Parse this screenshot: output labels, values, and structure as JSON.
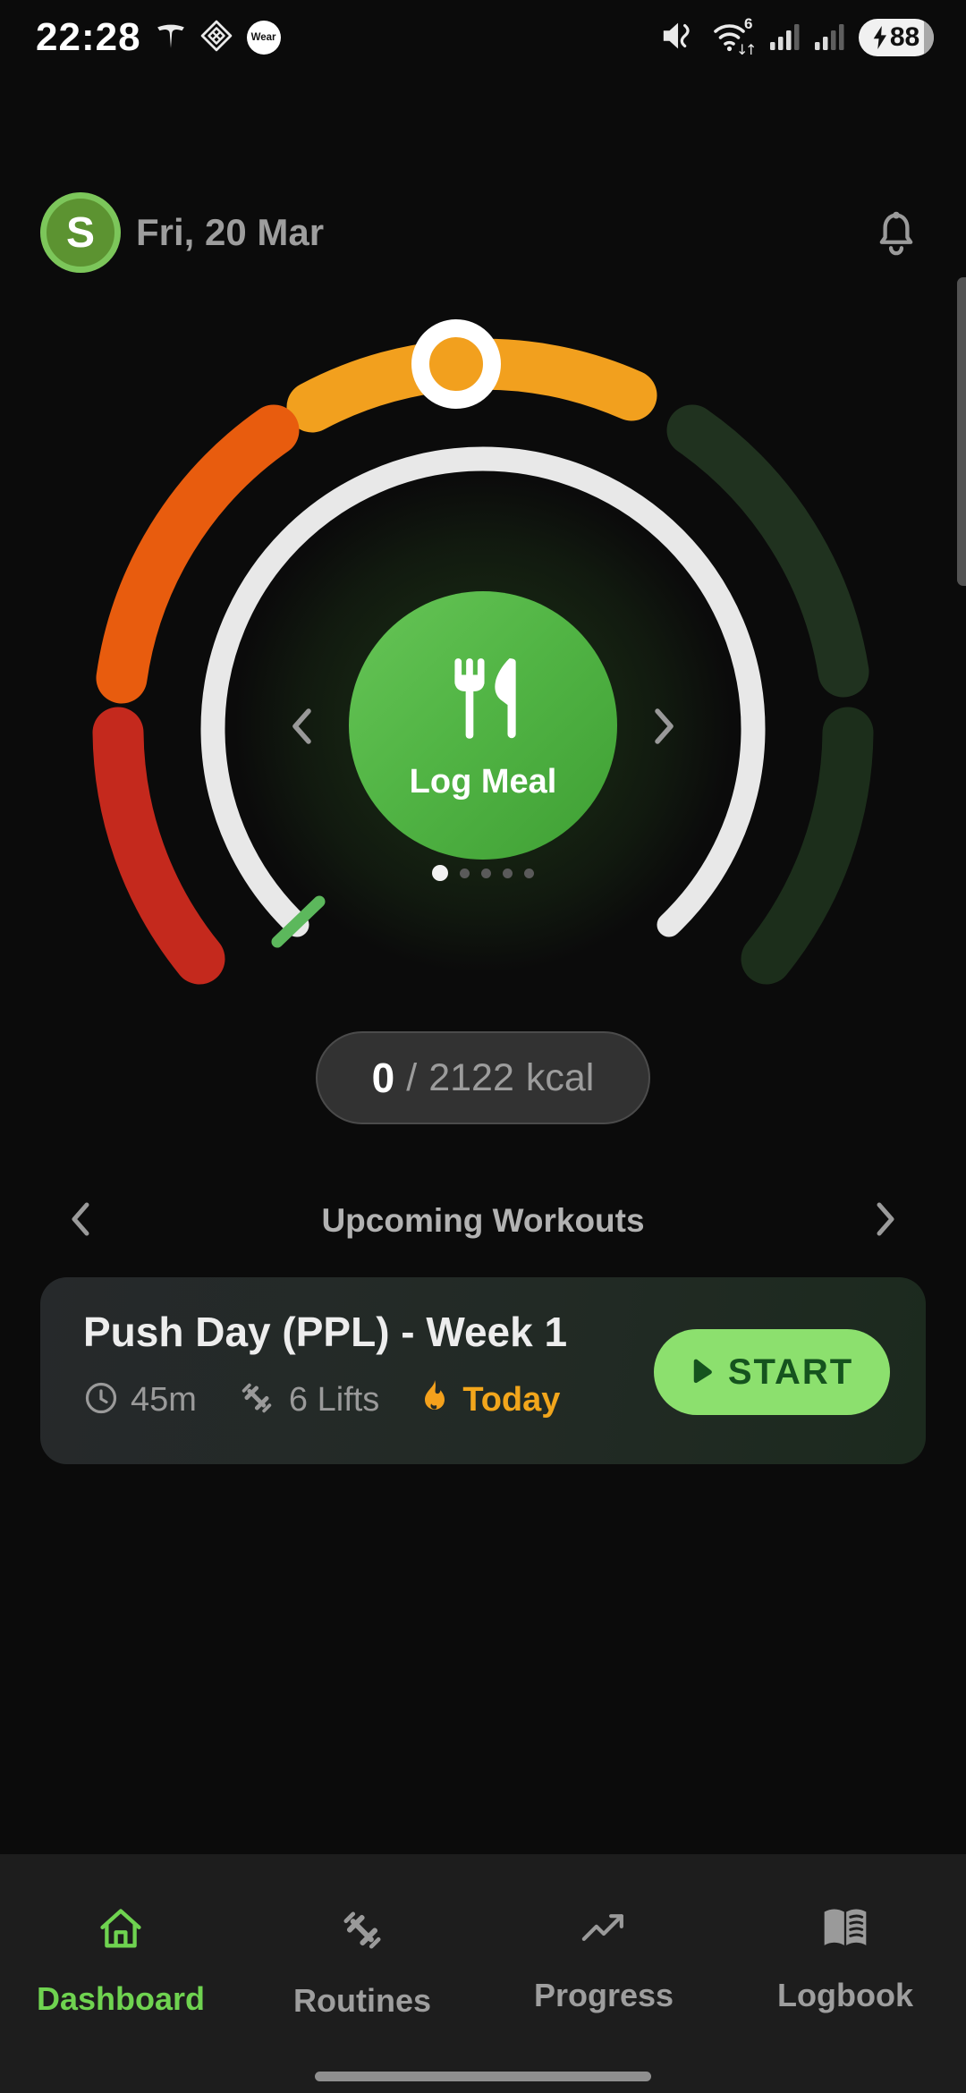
{
  "status_bar": {
    "time": "22:28",
    "wear_label": "Wear",
    "battery": "88",
    "icons": [
      "tesla-icon",
      "checkered-diamond-icon",
      "wear-badge",
      "mute-vibrate-icon",
      "wifi-6-icon",
      "signal-icon",
      "signal-icon",
      "battery-charging-icon"
    ]
  },
  "header": {
    "avatar_letter": "S",
    "date": "Fri, 20 Mar"
  },
  "gauge": {
    "action_label": "Log Meal",
    "calories": {
      "current": "0",
      "separator": "/",
      "target": "2122",
      "unit": "kcal"
    },
    "pagination": {
      "count": 5,
      "active": 0
    },
    "colors": {
      "amber": "#F2A01E",
      "orange": "#E85C0E",
      "red": "#C4291D",
      "dark_green": "#20321F",
      "track": "#E8E8E8",
      "tick": "#5CB85C",
      "center_green_start": "#67C557",
      "center_green_end": "#3F9F34"
    }
  },
  "upcoming": {
    "title": "Upcoming Workouts"
  },
  "workout_card": {
    "title": "Push Day (PPL) - Week 1",
    "duration": "45m",
    "lifts": "6 Lifts",
    "due": "Today",
    "start_label": "START"
  },
  "bottom_nav": {
    "active_color": "#6FD350",
    "items": [
      {
        "label": "Dashboard",
        "icon": "home-icon",
        "active": true
      },
      {
        "label": "Routines",
        "icon": "dumbbell-icon",
        "active": false
      },
      {
        "label": "Progress",
        "icon": "trending-up-icon",
        "active": false
      },
      {
        "label": "Logbook",
        "icon": "book-icon",
        "active": false
      }
    ]
  }
}
